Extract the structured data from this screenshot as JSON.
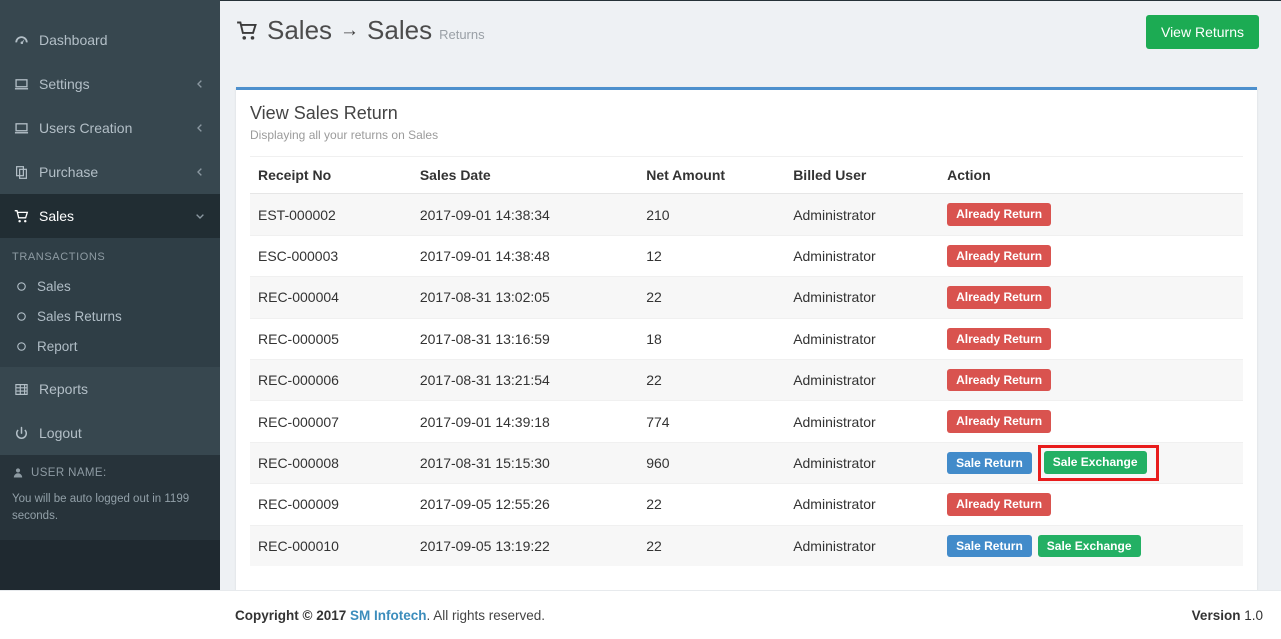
{
  "sidebar": {
    "menu_top": [
      {
        "label": "Dashboard",
        "icon": "dashboard"
      },
      {
        "label": "Settings",
        "icon": "desktop",
        "chevron": "left"
      },
      {
        "label": "Users Creation",
        "icon": "desktop",
        "chevron": "left"
      },
      {
        "label": "Purchase",
        "icon": "copy",
        "chevron": "left"
      },
      {
        "label": "Sales",
        "icon": "cart",
        "chevron": "down",
        "active": true
      }
    ],
    "transactions_label": "TRANSACTIONS",
    "transactions_items": [
      {
        "label": "Sales"
      },
      {
        "label": "Sales Returns"
      },
      {
        "label": "Report"
      }
    ],
    "menu_bottom": [
      {
        "label": "Reports",
        "icon": "table"
      },
      {
        "label": "Logout",
        "icon": "power"
      }
    ],
    "user_label": "USER NAME:",
    "auto_logout_text": "You will be auto logged out in 1199 seconds."
  },
  "header": {
    "section": "Sales",
    "arrow_glyph": "→",
    "page": "Sales",
    "page_suffix": "Returns",
    "button_label": "View Returns"
  },
  "panel": {
    "title": "View Sales Return",
    "subtitle": "Displaying all your returns on Sales",
    "table": {
      "headers": [
        "Receipt No",
        "Sales Date",
        "Net Amount",
        "Billed User",
        "Action"
      ],
      "rows": [
        {
          "receipt": "EST-000002",
          "date": "2017-09-01 14:38:34",
          "amount": "210",
          "user": "Administrator",
          "actions": [
            "already"
          ]
        },
        {
          "receipt": "ESC-000003",
          "date": "2017-09-01 14:38:48",
          "amount": "12",
          "user": "Administrator",
          "actions": [
            "already"
          ]
        },
        {
          "receipt": "REC-000004",
          "date": "2017-08-31 13:02:05",
          "amount": "22",
          "user": "Administrator",
          "actions": [
            "already"
          ]
        },
        {
          "receipt": "REC-000005",
          "date": "2017-08-31 13:16:59",
          "amount": "18",
          "user": "Administrator",
          "actions": [
            "already"
          ]
        },
        {
          "receipt": "REC-000006",
          "date": "2017-08-31 13:21:54",
          "amount": "22",
          "user": "Administrator",
          "actions": [
            "already"
          ]
        },
        {
          "receipt": "REC-000007",
          "date": "2017-09-01 14:39:18",
          "amount": "774",
          "user": "Administrator",
          "actions": [
            "already"
          ]
        },
        {
          "receipt": "REC-000008",
          "date": "2017-08-31 15:15:30",
          "amount": "960",
          "user": "Administrator",
          "actions": [
            "sale_return",
            "sale_exchange"
          ],
          "highlight": "sale_exchange"
        },
        {
          "receipt": "REC-000009",
          "date": "2017-09-05 12:55:26",
          "amount": "22",
          "user": "Administrator",
          "actions": [
            "already"
          ]
        },
        {
          "receipt": "REC-000010",
          "date": "2017-09-05 13:19:22",
          "amount": "22",
          "user": "Administrator",
          "actions": [
            "sale_return",
            "sale_exchange"
          ]
        }
      ]
    },
    "badges": {
      "already": "Already Return",
      "sale_return": "Sale Return",
      "sale_exchange": "Sale Exchange"
    }
  },
  "footer": {
    "copyright_prefix": "Copyright © 2017 ",
    "brand": "SM Infotech",
    "copyright_suffix": ". All rights reserved.",
    "version_label": "Version",
    "version_value": "1.0"
  },
  "colors": {
    "primary_green": "#1cab53",
    "badge_red": "#d9534f",
    "badge_blue": "#428bca",
    "badge_green": "#23b064",
    "panel_accent_blue": "#4d90cd",
    "annotation_red": "#e81c1c",
    "sidebar_bg": "#37474f",
    "sidebar_active_bg": "#212d33"
  }
}
